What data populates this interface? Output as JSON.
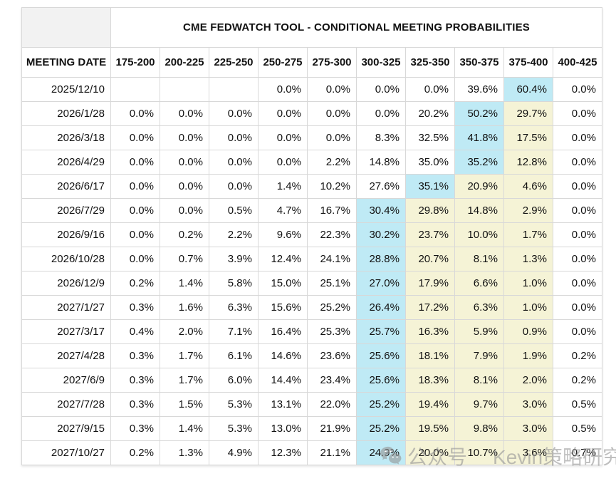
{
  "chart_data": {
    "type": "table",
    "title": "CME FEDWATCH TOOL - CONDITIONAL MEETING PROBABILITIES",
    "columns": [
      "MEETING DATE",
      "175-200",
      "200-225",
      "225-250",
      "250-275",
      "275-300",
      "300-325",
      "325-350",
      "350-375",
      "375-400",
      "400-425"
    ],
    "rows": [
      {
        "date": "2025/12/10",
        "values": [
          "",
          "",
          "",
          "0.0%",
          "0.0%",
          "0.0%",
          "0.0%",
          "39.6%",
          "60.4%",
          "0.0%"
        ],
        "blue": [
          8
        ],
        "yellow": []
      },
      {
        "date": "2026/1/28",
        "values": [
          "0.0%",
          "0.0%",
          "0.0%",
          "0.0%",
          "0.0%",
          "0.0%",
          "20.2%",
          "50.2%",
          "29.7%",
          "0.0%"
        ],
        "blue": [
          7
        ],
        "yellow": [
          8
        ]
      },
      {
        "date": "2026/3/18",
        "values": [
          "0.0%",
          "0.0%",
          "0.0%",
          "0.0%",
          "0.0%",
          "8.3%",
          "32.5%",
          "41.8%",
          "17.5%",
          "0.0%"
        ],
        "blue": [
          7
        ],
        "yellow": [
          8
        ]
      },
      {
        "date": "2026/4/29",
        "values": [
          "0.0%",
          "0.0%",
          "0.0%",
          "0.0%",
          "2.2%",
          "14.8%",
          "35.0%",
          "35.2%",
          "12.8%",
          "0.0%"
        ],
        "blue": [
          7
        ],
        "yellow": [
          8
        ]
      },
      {
        "date": "2026/6/17",
        "values": [
          "0.0%",
          "0.0%",
          "0.0%",
          "1.4%",
          "10.2%",
          "27.6%",
          "35.1%",
          "20.9%",
          "4.6%",
          "0.0%"
        ],
        "blue": [
          6
        ],
        "yellow": [
          7,
          8
        ]
      },
      {
        "date": "2026/7/29",
        "values": [
          "0.0%",
          "0.0%",
          "0.5%",
          "4.7%",
          "16.7%",
          "30.4%",
          "29.8%",
          "14.8%",
          "2.9%",
          "0.0%"
        ],
        "blue": [
          5
        ],
        "yellow": [
          6,
          7,
          8
        ]
      },
      {
        "date": "2026/9/16",
        "values": [
          "0.0%",
          "0.2%",
          "2.2%",
          "9.6%",
          "22.3%",
          "30.2%",
          "23.7%",
          "10.0%",
          "1.7%",
          "0.0%"
        ],
        "blue": [
          5
        ],
        "yellow": [
          6,
          7,
          8
        ]
      },
      {
        "date": "2026/10/28",
        "values": [
          "0.0%",
          "0.7%",
          "3.9%",
          "12.4%",
          "24.1%",
          "28.8%",
          "20.7%",
          "8.1%",
          "1.3%",
          "0.0%"
        ],
        "blue": [
          5
        ],
        "yellow": [
          6,
          7,
          8
        ]
      },
      {
        "date": "2026/12/9",
        "values": [
          "0.2%",
          "1.4%",
          "5.8%",
          "15.0%",
          "25.1%",
          "27.0%",
          "17.9%",
          "6.6%",
          "1.0%",
          "0.0%"
        ],
        "blue": [
          5
        ],
        "yellow": [
          6,
          7,
          8
        ]
      },
      {
        "date": "2027/1/27",
        "values": [
          "0.3%",
          "1.6%",
          "6.3%",
          "15.6%",
          "25.2%",
          "26.4%",
          "17.2%",
          "6.3%",
          "1.0%",
          "0.0%"
        ],
        "blue": [
          5
        ],
        "yellow": [
          6,
          7,
          8
        ]
      },
      {
        "date": "2027/3/17",
        "values": [
          "0.4%",
          "2.0%",
          "7.1%",
          "16.4%",
          "25.3%",
          "25.7%",
          "16.3%",
          "5.9%",
          "0.9%",
          "0.0%"
        ],
        "blue": [
          5
        ],
        "yellow": [
          6,
          7,
          8
        ]
      },
      {
        "date": "2027/4/28",
        "values": [
          "0.3%",
          "1.7%",
          "6.1%",
          "14.6%",
          "23.6%",
          "25.6%",
          "18.1%",
          "7.9%",
          "1.9%",
          "0.2%"
        ],
        "blue": [
          5
        ],
        "yellow": [
          6,
          7,
          8
        ]
      },
      {
        "date": "2027/6/9",
        "values": [
          "0.3%",
          "1.7%",
          "6.0%",
          "14.4%",
          "23.4%",
          "25.6%",
          "18.3%",
          "8.1%",
          "2.0%",
          "0.2%"
        ],
        "blue": [
          5
        ],
        "yellow": [
          6,
          7,
          8
        ]
      },
      {
        "date": "2027/7/28",
        "values": [
          "0.3%",
          "1.5%",
          "5.3%",
          "13.1%",
          "22.0%",
          "25.2%",
          "19.4%",
          "9.7%",
          "3.0%",
          "0.5%"
        ],
        "blue": [
          5
        ],
        "yellow": [
          6,
          7,
          8
        ]
      },
      {
        "date": "2027/9/15",
        "values": [
          "0.3%",
          "1.4%",
          "5.3%",
          "13.0%",
          "21.9%",
          "25.2%",
          "19.5%",
          "9.8%",
          "3.0%",
          "0.5%"
        ],
        "blue": [
          5
        ],
        "yellow": [
          6,
          7,
          8
        ]
      },
      {
        "date": "2027/10/27",
        "values": [
          "0.2%",
          "1.3%",
          "4.9%",
          "12.3%",
          "21.1%",
          "24.9%",
          "20.0%",
          "10.7%",
          "3.6%",
          "0.7%"
        ],
        "blue": [
          5
        ],
        "yellow": [
          6,
          7,
          8
        ]
      }
    ],
    "legend": {
      "highlight_blue_meaning": "highest probability cell in row",
      "highlight_yellow_meaning": "secondary probability cells"
    }
  },
  "watermark": {
    "icon": "wechat-icon",
    "label_left": "公众号",
    "label_right": "Kevin策略研究"
  },
  "colors": {
    "highlight_blue": "#bfeaf5",
    "highlight_yellow": "#f5f3d6",
    "border": "#d8d8d8",
    "corner_cell_bg": "#f2f2f2",
    "watermark_gray": "#949494"
  }
}
